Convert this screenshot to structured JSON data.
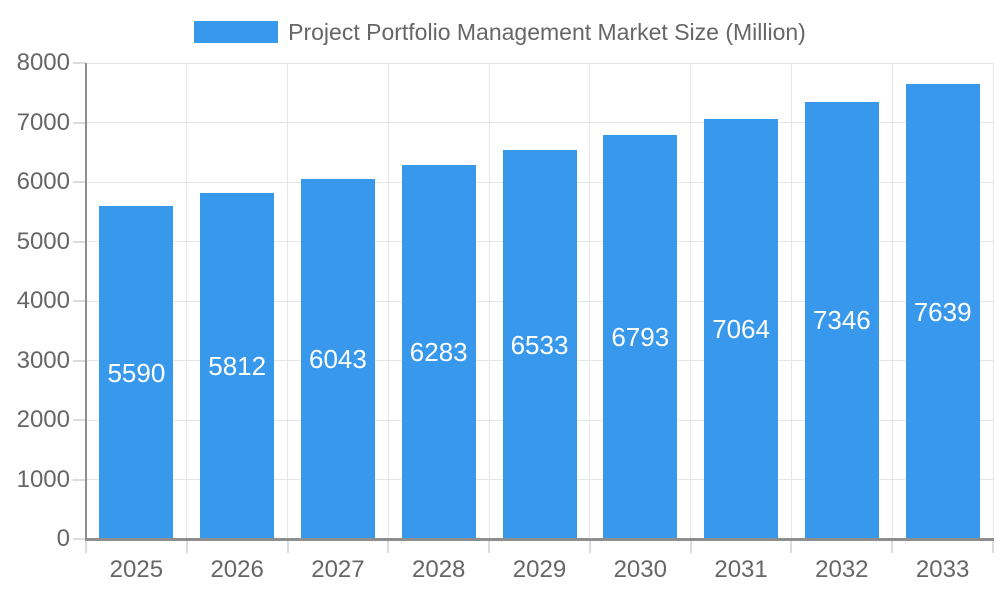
{
  "chart_data": {
    "type": "bar",
    "title": "Project Portfolio Management Market Size (Million)",
    "categories": [
      "2025",
      "2026",
      "2027",
      "2028",
      "2029",
      "2030",
      "2031",
      "2032",
      "2033"
    ],
    "values": [
      5590,
      5812,
      6043,
      6283,
      6533,
      6793,
      7064,
      7346,
      7639
    ],
    "yticks": [
      0,
      1000,
      2000,
      3000,
      4000,
      5000,
      6000,
      7000,
      8000
    ],
    "ylim": [
      0,
      8000
    ],
    "xlabel": "",
    "ylabel": "",
    "grid": true,
    "legend_position": "top",
    "value_labels": "inside-center",
    "style": {
      "bar_color": "#3899EC",
      "grid_color": "#E6E6E6",
      "axis_color": "#8E8E8E",
      "tick_color": "#DCDCDC",
      "text_color": "#666666",
      "value_text_color": "#FFFFFF",
      "background": "#FFFFFF"
    }
  }
}
